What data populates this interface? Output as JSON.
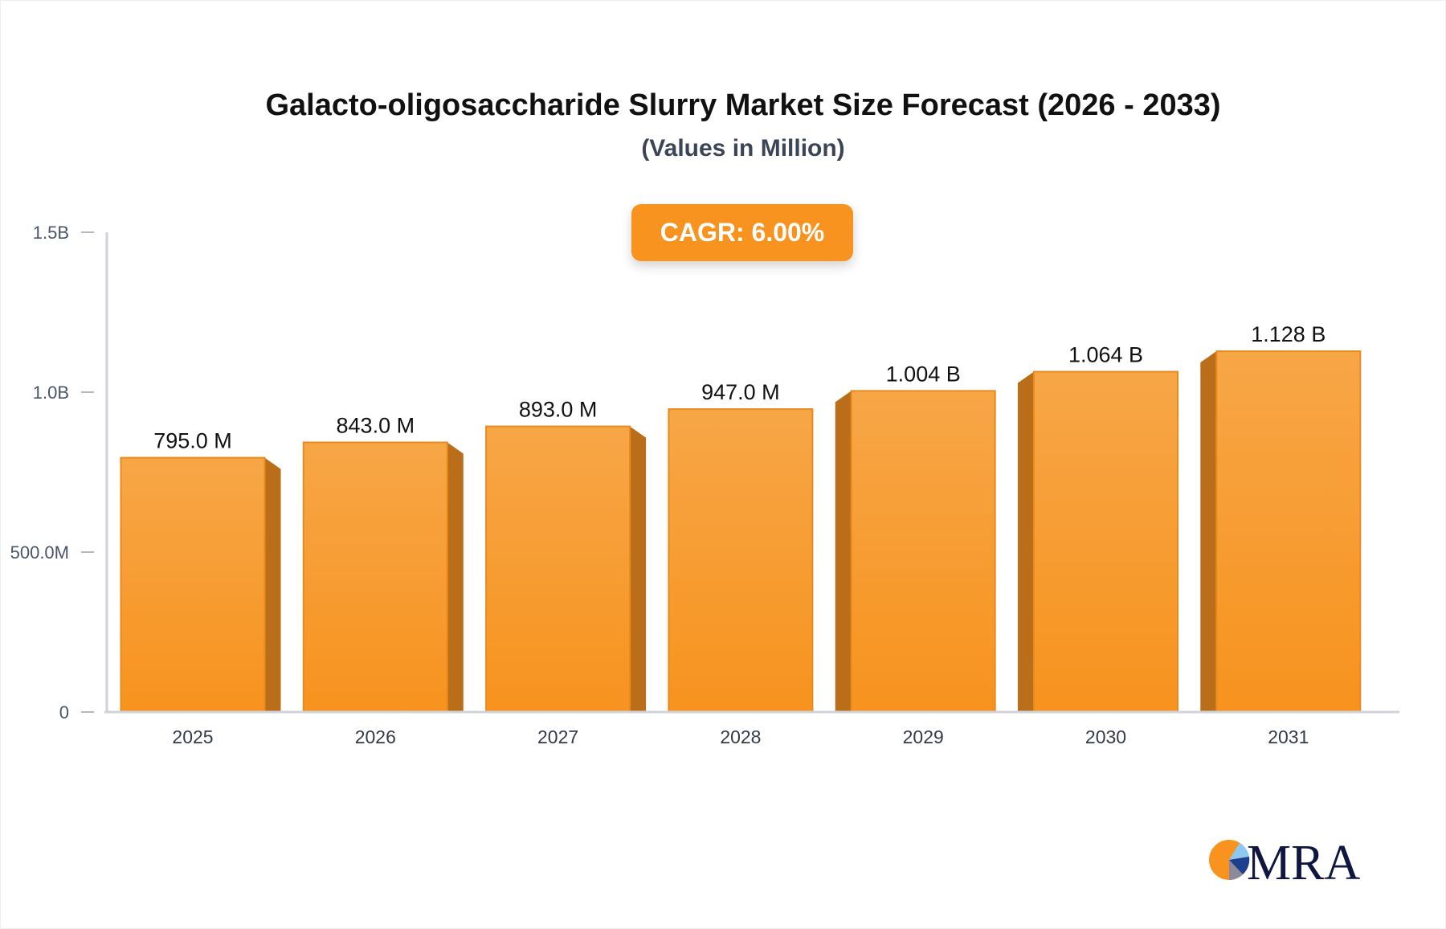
{
  "chart_data": {
    "type": "bar",
    "title": "Galacto-oligosaccharide Slurry Market Size Forecast (2026 - 2033)",
    "subtitle": "(Values in Million)",
    "categories": [
      "2025",
      "2026",
      "2027",
      "2028",
      "2029",
      "2030",
      "2031"
    ],
    "values": [
      795.0,
      843.0,
      893.0,
      947.0,
      1004,
      1064,
      1128
    ],
    "data_labels": [
      "795.0 M",
      "843.0 M",
      "893.0 M",
      "947.0 M",
      "1.004 B",
      "1.064 B",
      "1.128 B"
    ],
    "y_unit": "Million",
    "ylim": [
      0,
      1500
    ],
    "y_ticks": [
      0,
      500,
      1000,
      1500
    ],
    "y_tick_labels": [
      "0",
      "500.0M",
      "1.0B",
      "1.5B"
    ],
    "xlabel": "",
    "ylabel": "",
    "grid": false,
    "bar_color": "#f7a039",
    "bar_side_color": "#bb6e1a"
  },
  "annotation": {
    "cagr": "CAGR: 6.00%"
  },
  "logo": {
    "text": "MRA"
  }
}
